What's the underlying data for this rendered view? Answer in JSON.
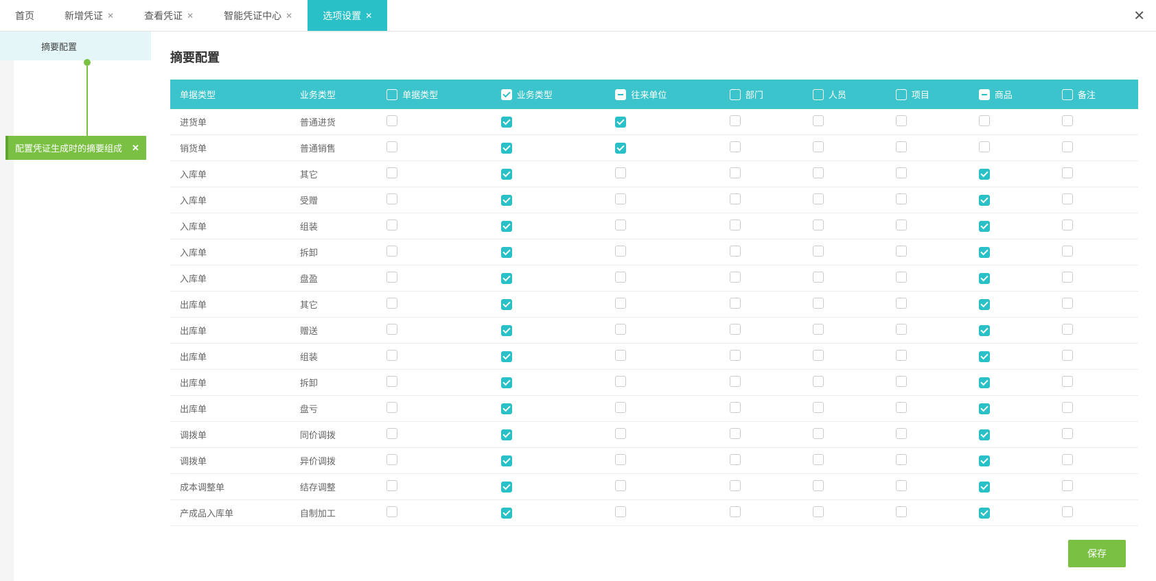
{
  "tabs": [
    {
      "label": "首页",
      "closable": false,
      "active": false
    },
    {
      "label": "新增凭证",
      "closable": true,
      "active": false
    },
    {
      "label": "查看凭证",
      "closable": true,
      "active": false
    },
    {
      "label": "智能凭证中心",
      "closable": true,
      "active": false
    },
    {
      "label": "选项设置",
      "closable": true,
      "active": true
    }
  ],
  "sidebar": {
    "top_label": "摘要配置",
    "badge_text": "配置凭证生成时的摘要组成"
  },
  "page_title": "摘要配置",
  "columns_text": [
    "单据类型",
    "业务类型"
  ],
  "check_columns": [
    {
      "label": "单据类型",
      "state": "unchecked"
    },
    {
      "label": "业务类型",
      "state": "checked"
    },
    {
      "label": "往来单位",
      "state": "indeterminate"
    },
    {
      "label": "部门",
      "state": "unchecked"
    },
    {
      "label": "人员",
      "state": "unchecked"
    },
    {
      "label": "项目",
      "state": "unchecked"
    },
    {
      "label": "商品",
      "state": "indeterminate"
    },
    {
      "label": "备注",
      "state": "unchecked"
    }
  ],
  "rows": [
    {
      "c0": "进货单",
      "c1": "普通进货",
      "checks": [
        false,
        true,
        true,
        false,
        false,
        false,
        false,
        false
      ]
    },
    {
      "c0": "销货单",
      "c1": "普通销售",
      "checks": [
        false,
        true,
        true,
        false,
        false,
        false,
        false,
        false
      ]
    },
    {
      "c0": "入库单",
      "c1": "其它",
      "checks": [
        false,
        true,
        false,
        false,
        false,
        false,
        true,
        false
      ]
    },
    {
      "c0": "入库单",
      "c1": "受赠",
      "checks": [
        false,
        true,
        false,
        false,
        false,
        false,
        true,
        false
      ]
    },
    {
      "c0": "入库单",
      "c1": "组装",
      "checks": [
        false,
        true,
        false,
        false,
        false,
        false,
        true,
        false
      ]
    },
    {
      "c0": "入库单",
      "c1": "拆卸",
      "checks": [
        false,
        true,
        false,
        false,
        false,
        false,
        true,
        false
      ]
    },
    {
      "c0": "入库单",
      "c1": "盘盈",
      "checks": [
        false,
        true,
        false,
        false,
        false,
        false,
        true,
        false
      ]
    },
    {
      "c0": "出库单",
      "c1": "其它",
      "checks": [
        false,
        true,
        false,
        false,
        false,
        false,
        true,
        false
      ]
    },
    {
      "c0": "出库单",
      "c1": "赠送",
      "checks": [
        false,
        true,
        false,
        false,
        false,
        false,
        true,
        false
      ]
    },
    {
      "c0": "出库单",
      "c1": "组装",
      "checks": [
        false,
        true,
        false,
        false,
        false,
        false,
        true,
        false
      ]
    },
    {
      "c0": "出库单",
      "c1": "拆卸",
      "checks": [
        false,
        true,
        false,
        false,
        false,
        false,
        true,
        false
      ]
    },
    {
      "c0": "出库单",
      "c1": "盘亏",
      "checks": [
        false,
        true,
        false,
        false,
        false,
        false,
        true,
        false
      ]
    },
    {
      "c0": "调拨单",
      "c1": "同价调拨",
      "checks": [
        false,
        true,
        false,
        false,
        false,
        false,
        true,
        false
      ]
    },
    {
      "c0": "调拨单",
      "c1": "异价调拨",
      "checks": [
        false,
        true,
        false,
        false,
        false,
        false,
        true,
        false
      ]
    },
    {
      "c0": "成本调整单",
      "c1": "结存调整",
      "checks": [
        false,
        true,
        false,
        false,
        false,
        false,
        true,
        false
      ]
    },
    {
      "c0": "产成品入库单",
      "c1": "自制加工",
      "checks": [
        false,
        true,
        false,
        false,
        false,
        false,
        true,
        false
      ]
    }
  ],
  "save_label": "保存",
  "colors": {
    "primary": "#29c0c7",
    "header": "#3cc4cc",
    "green": "#7ac143"
  }
}
